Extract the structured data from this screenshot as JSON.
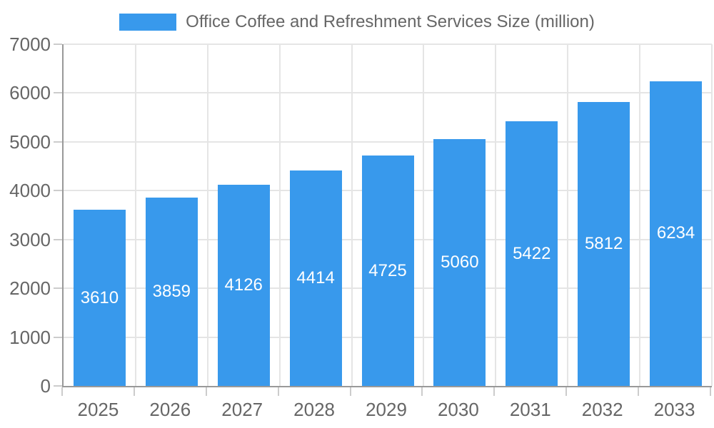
{
  "chart_data": {
    "type": "bar",
    "title": "Office Coffee and Refreshment Services Size (million)",
    "categories": [
      "2025",
      "2026",
      "2027",
      "2028",
      "2029",
      "2030",
      "2031",
      "2032",
      "2033"
    ],
    "values": [
      3610,
      3859,
      4126,
      4414,
      4725,
      5060,
      5422,
      5812,
      6234
    ],
    "series": [
      {
        "name": "Office Coffee and Refreshment Services Size (million)",
        "values": [
          3610,
          3859,
          4126,
          4414,
          4725,
          5060,
          5422,
          5812,
          6234
        ]
      }
    ],
    "xlabel": "",
    "ylabel": "",
    "ylim": [
      0,
      7000
    ],
    "yticks": [
      0,
      1000,
      2000,
      3000,
      4000,
      5000,
      6000,
      7000
    ],
    "grid": true,
    "legend_position": "top-center",
    "value_label_position": "inside-center",
    "colors": {
      "bar": "#3899EC",
      "axis_label": "#666666",
      "grid_line": "#E5E5E5",
      "axis_line": "#999999",
      "tick_mark": "#CCCCCC",
      "value_label": "#FFFFFF",
      "background": "#FFFFFF"
    }
  }
}
